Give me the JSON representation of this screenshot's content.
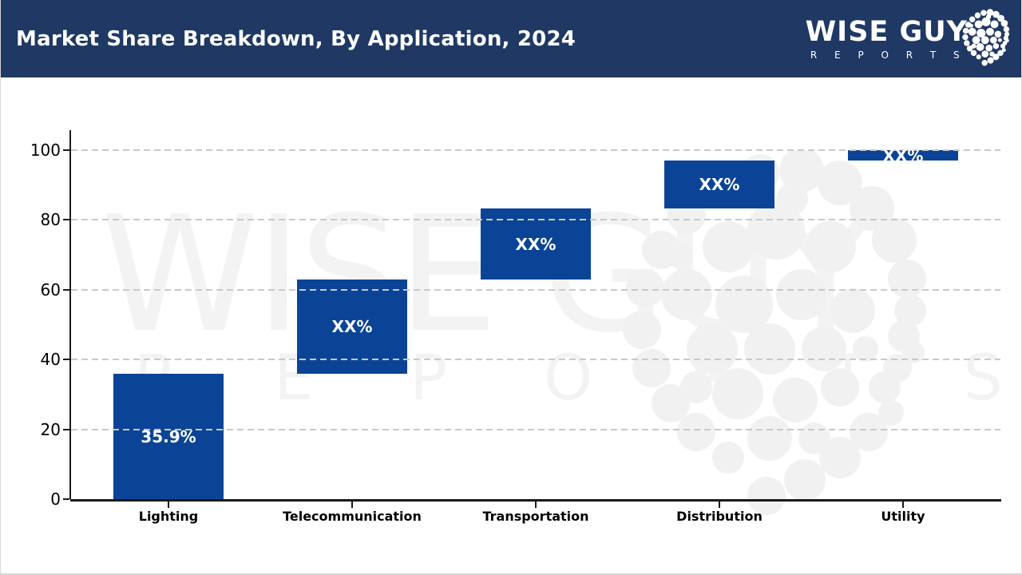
{
  "header": {
    "title": "Market Share Breakdown, By Application, 2024",
    "background_color": "#1f3864",
    "logo": {
      "brand_line1": "WISE GUY",
      "brand_line2": "R E P O R T S",
      "head_icon": "dotted-head-profile"
    }
  },
  "watermark": {
    "line1": "WISE GUY",
    "line2": "R E P O R T S"
  },
  "chart_data": {
    "type": "bar",
    "variant": "waterfall",
    "title": "Market Share Breakdown, By Application, 2024",
    "categories": [
      "Lighting",
      "Telecommunication",
      "Transportation",
      "Distribution",
      "Utility"
    ],
    "segments": [
      {
        "category": "Lighting",
        "start": 0,
        "end": 35.9,
        "label": "35.9%"
      },
      {
        "category": "Telecommunication",
        "start": 35.9,
        "end": 62.9,
        "label": "XX%"
      },
      {
        "category": "Transportation",
        "start": 62.9,
        "end": 83.3,
        "label": "XX%"
      },
      {
        "category": "Distribution",
        "start": 83.3,
        "end": 97.0,
        "label": "XX%"
      },
      {
        "category": "Utility",
        "start": 97.0,
        "end": 100.0,
        "label": "XX%"
      }
    ],
    "xlabel": "",
    "ylabel": "",
    "ylim": [
      0,
      100
    ],
    "yticks": [
      0,
      20,
      40,
      60,
      80,
      100
    ],
    "grid": "horizontal-dashed",
    "legend": "none",
    "bar_color": "#0b4496",
    "bar_label_color": "#ffffff",
    "gridline_color": "#c9c9c9",
    "axis_color": "#1a1a1a",
    "tick_label_color": "#000000"
  }
}
